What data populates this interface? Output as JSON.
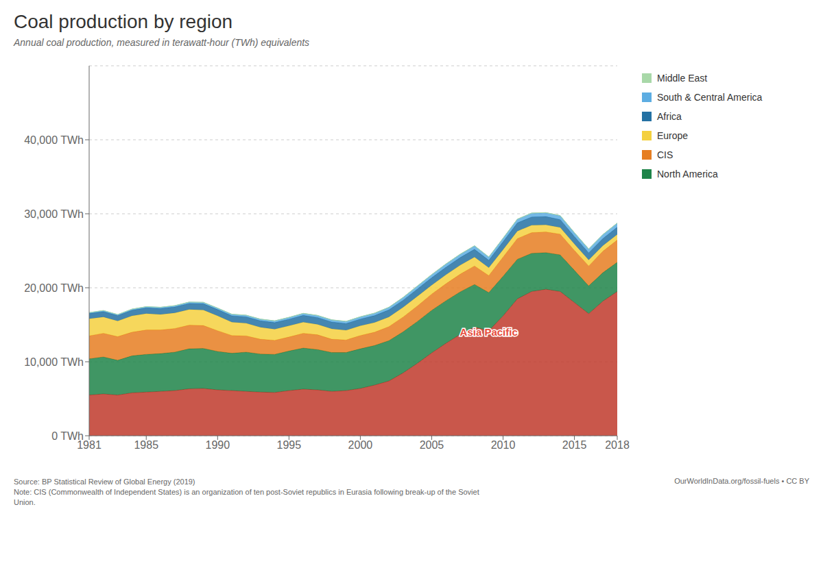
{
  "chart_data": {
    "type": "area",
    "stacked": true,
    "grid": true,
    "legend": "right",
    "title": "Coal production by region",
    "subtitle": "Annual coal production, measured in terawatt-hour (TWh) equivalents",
    "notes": [
      "Source: BP Statistical Review of Global Energy (2019)",
      "Note: CIS (Commonwealth of Independent States) is an organization of ten post-Soviet republics in Eurasia following break-up of the Soviet",
      "Union."
    ],
    "attribution": "OurWorldInData.org/fossil-fuels • CC BY",
    "x": [
      1981,
      1982,
      1983,
      1984,
      1985,
      1986,
      1987,
      1988,
      1989,
      1990,
      1991,
      1992,
      1993,
      1994,
      1995,
      1996,
      1997,
      1998,
      1999,
      2000,
      2001,
      2002,
      2003,
      2004,
      2005,
      2006,
      2007,
      2008,
      2009,
      2010,
      2011,
      2012,
      2013,
      2014,
      2015,
      2016,
      2017,
      2018
    ],
    "series": [
      {
        "name": "Asia Pacific",
        "color": "#c0392b",
        "values": [
          5500,
          5650,
          5500,
          5800,
          5900,
          6000,
          6100,
          6350,
          6400,
          6200,
          6100,
          6000,
          5900,
          5850,
          6100,
          6300,
          6200,
          6000,
          6100,
          6400,
          6850,
          7400,
          8500,
          9800,
          11200,
          12500,
          13700,
          14700,
          14200,
          16200,
          18500,
          19500,
          19800,
          19500,
          18000,
          16500,
          18200,
          19500
        ]
      },
      {
        "name": "North America",
        "color": "#1e8449",
        "values": [
          4900,
          5000,
          4700,
          5000,
          5100,
          5100,
          5200,
          5400,
          5400,
          5200,
          5050,
          5300,
          5150,
          5150,
          5350,
          5550,
          5450,
          5250,
          5150,
          5350,
          5350,
          5450,
          5550,
          5650,
          5750,
          5750,
          5750,
          5750,
          5150,
          5350,
          5350,
          5150,
          4950,
          4950,
          4350,
          3750,
          3850,
          3950
        ]
      },
      {
        "name": "CIS",
        "color": "#e67e22",
        "values": [
          3100,
          3200,
          3200,
          3200,
          3300,
          3200,
          3200,
          3200,
          3100,
          2800,
          2400,
          2200,
          2000,
          1900,
          1900,
          2000,
          2000,
          1800,
          1700,
          1800,
          1800,
          1900,
          2000,
          2100,
          2200,
          2300,
          2400,
          2500,
          2300,
          2600,
          2800,
          2800,
          2800,
          2800,
          2700,
          2700,
          2900,
          3000
        ]
      },
      {
        "name": "Europe",
        "color": "#f4d03f",
        "values": [
          2300,
          2200,
          2100,
          2200,
          2200,
          2100,
          2100,
          2100,
          2100,
          2000,
          1800,
          1700,
          1600,
          1500,
          1500,
          1500,
          1400,
          1400,
          1300,
          1300,
          1300,
          1300,
          1300,
          1300,
          1200,
          1200,
          1200,
          1200,
          1050,
          1000,
          1000,
          1000,
          950,
          900,
          850,
          800,
          750,
          750
        ]
      },
      {
        "name": "Africa",
        "color": "#2471a3",
        "values": [
          720,
          740,
          750,
          770,
          790,
          800,
          810,
          830,
          840,
          850,
          860,
          870,
          880,
          890,
          900,
          920,
          930,
          920,
          910,
          920,
          940,
          960,
          970,
          990,
          1010,
          1030,
          1040,
          1050,
          1020,
          1070,
          1120,
          1120,
          1120,
          1070,
          1020,
          980,
          970,
          990
        ]
      },
      {
        "name": "South & Central America",
        "color": "#5dade2",
        "values": [
          110,
          120,
          120,
          130,
          140,
          150,
          160,
          170,
          180,
          190,
          200,
          210,
          220,
          230,
          240,
          260,
          270,
          280,
          290,
          300,
          320,
          340,
          370,
          390,
          410,
          430,
          440,
          460,
          430,
          460,
          490,
          510,
          520,
          520,
          510,
          500,
          520,
          540
        ]
      },
      {
        "name": "Middle East",
        "color": "#a8d8a8",
        "values": [
          20,
          20,
          20,
          20,
          20,
          20,
          20,
          20,
          20,
          20,
          20,
          20,
          20,
          20,
          20,
          20,
          20,
          20,
          20,
          20,
          20,
          20,
          20,
          20,
          20,
          20,
          20,
          20,
          20,
          20,
          20,
          20,
          20,
          20,
          20,
          20,
          20,
          20
        ]
      }
    ],
    "annotations": [
      {
        "text": "Asia Pacific",
        "x": 2009,
        "y": 14000,
        "color": "#e74c3c"
      }
    ],
    "xlim": [
      1981,
      2018
    ],
    "xticks": [
      1981,
      1985,
      1990,
      1995,
      2000,
      2005,
      2010,
      2015,
      2018
    ],
    "ylim": [
      0,
      50000
    ],
    "yticks": [
      {
        "value": 0,
        "label": "0 TWh"
      },
      {
        "value": 10000,
        "label": "10,000 TWh"
      },
      {
        "value": 20000,
        "label": "20,000 TWh"
      },
      {
        "value": 30000,
        "label": "30,000 TWh"
      },
      {
        "value": 40000,
        "label": "40,000 TWh"
      }
    ]
  }
}
